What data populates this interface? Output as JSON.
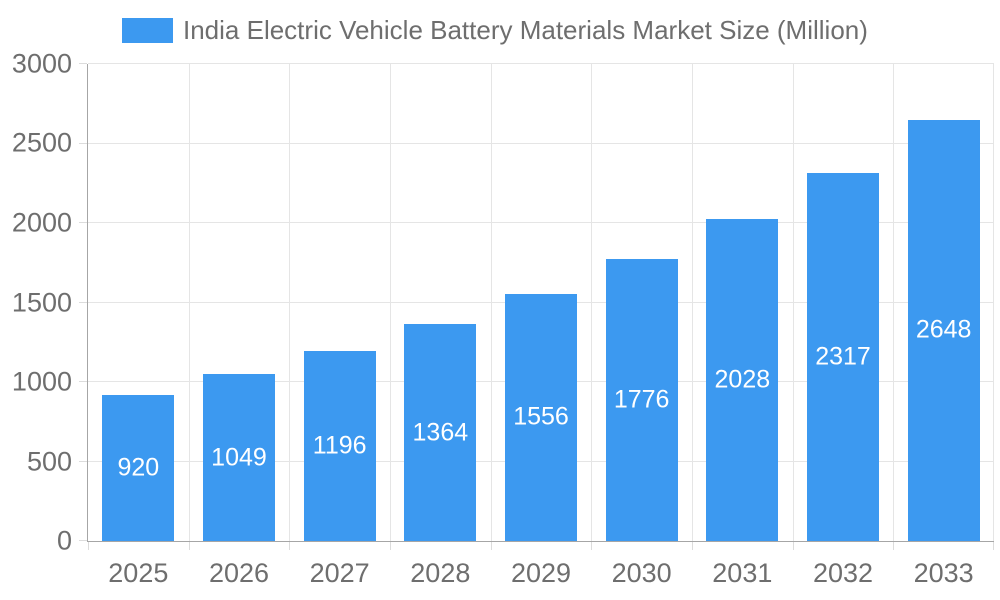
{
  "chart_data": {
    "type": "bar",
    "title": "India Electric Vehicle Battery Materials Market Size (Million)",
    "legend": {
      "position": "top",
      "entries": [
        "India Electric Vehicle Battery Materials Market Size (Million)"
      ]
    },
    "categories": [
      "2025",
      "2026",
      "2027",
      "2028",
      "2029",
      "2030",
      "2031",
      "2032",
      "2033"
    ],
    "values": [
      920,
      1049,
      1196,
      1364,
      1556,
      1776,
      2028,
      2317,
      2648
    ],
    "value_labels_shown": true,
    "value_label_position": "inside-center",
    "xlabel": "",
    "ylabel": "",
    "ylim": [
      0,
      3000
    ],
    "yticks": [
      0,
      500,
      1000,
      1500,
      2000,
      2500,
      3000
    ],
    "grid": true,
    "colors": {
      "bar": "#3c99f0",
      "value_label": "#ffffff",
      "axis_text": "#6e6e6e",
      "legend_text": "#6e6e6e",
      "gridline": "#e5e5e5",
      "axis_line": "#a6a6a6"
    }
  }
}
